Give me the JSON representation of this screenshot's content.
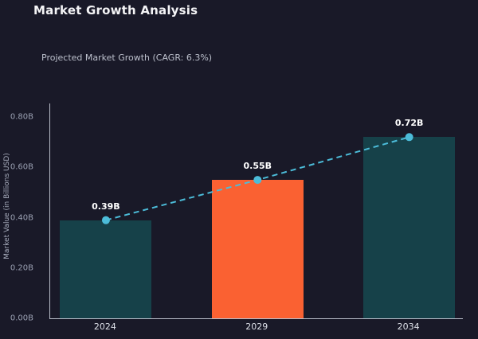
{
  "chart_data": {
    "type": "bar",
    "title": "Market Growth Analysis",
    "subtitle": "Projected Market Growth (CAGR: 6.3%)",
    "categories": [
      "2024",
      "2029",
      "2034"
    ],
    "values": [
      0.39,
      0.55,
      0.72
    ],
    "value_labels": [
      "0.39B",
      "0.55B",
      "0.72B"
    ],
    "xlabel": "",
    "ylabel": "Market Value (in Billions USD)",
    "ylim": [
      0,
      0.8
    ],
    "yticks": [
      "0.00B",
      "0.20B",
      "0.40B",
      "0.60B",
      "0.80B"
    ],
    "grid": false,
    "legend": false,
    "background": "#191928",
    "bar_colors": [
      "#164149",
      "#fa6132",
      "#164149"
    ],
    "axis_color": "#b9bdc9",
    "tick_color": "#9aa0b2",
    "value_label_color": "#ffffff",
    "trend_line": {
      "type": "line",
      "style": "dashed",
      "markers": true,
      "color": "#4cbcd9",
      "values": [
        0.39,
        0.55,
        0.72
      ]
    }
  }
}
